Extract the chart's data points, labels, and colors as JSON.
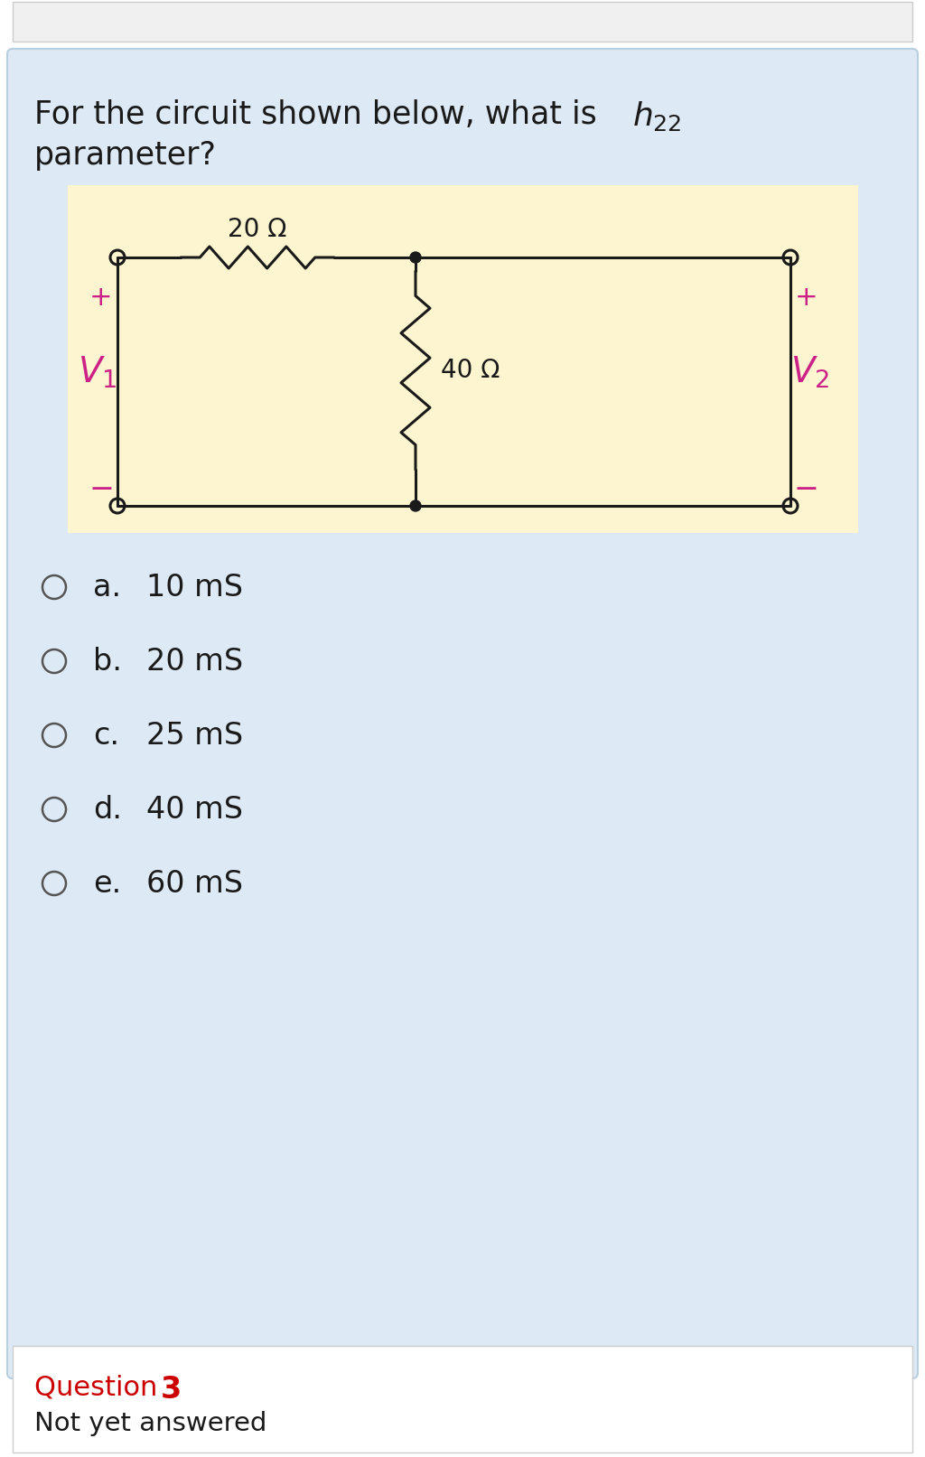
{
  "bg_outer": "#ffffff",
  "bg_card": "#ddeaf5",
  "bg_circuit": "#fdf5d0",
  "resistor1_label": "20 Ω",
  "resistor2_label": "40 Ω",
  "options": [
    {
      "letter": "a.",
      "text": "10 mS"
    },
    {
      "letter": "b.",
      "text": "20 mS"
    },
    {
      "letter": "c.",
      "text": "25 mS"
    },
    {
      "letter": "d.",
      "text": "40 mS"
    },
    {
      "letter": "e.",
      "text": "60 mS"
    }
  ],
  "not_yet_text": "Not yet answered",
  "text_color": "#1a1a1a",
  "pink_color": "#cc2288",
  "red_color": "#cc0000",
  "circuit_line_color": "#1a1a1a",
  "card_border": "#b8cfe0",
  "footer_border": "#cccccc",
  "option_circle_color": "#555555"
}
